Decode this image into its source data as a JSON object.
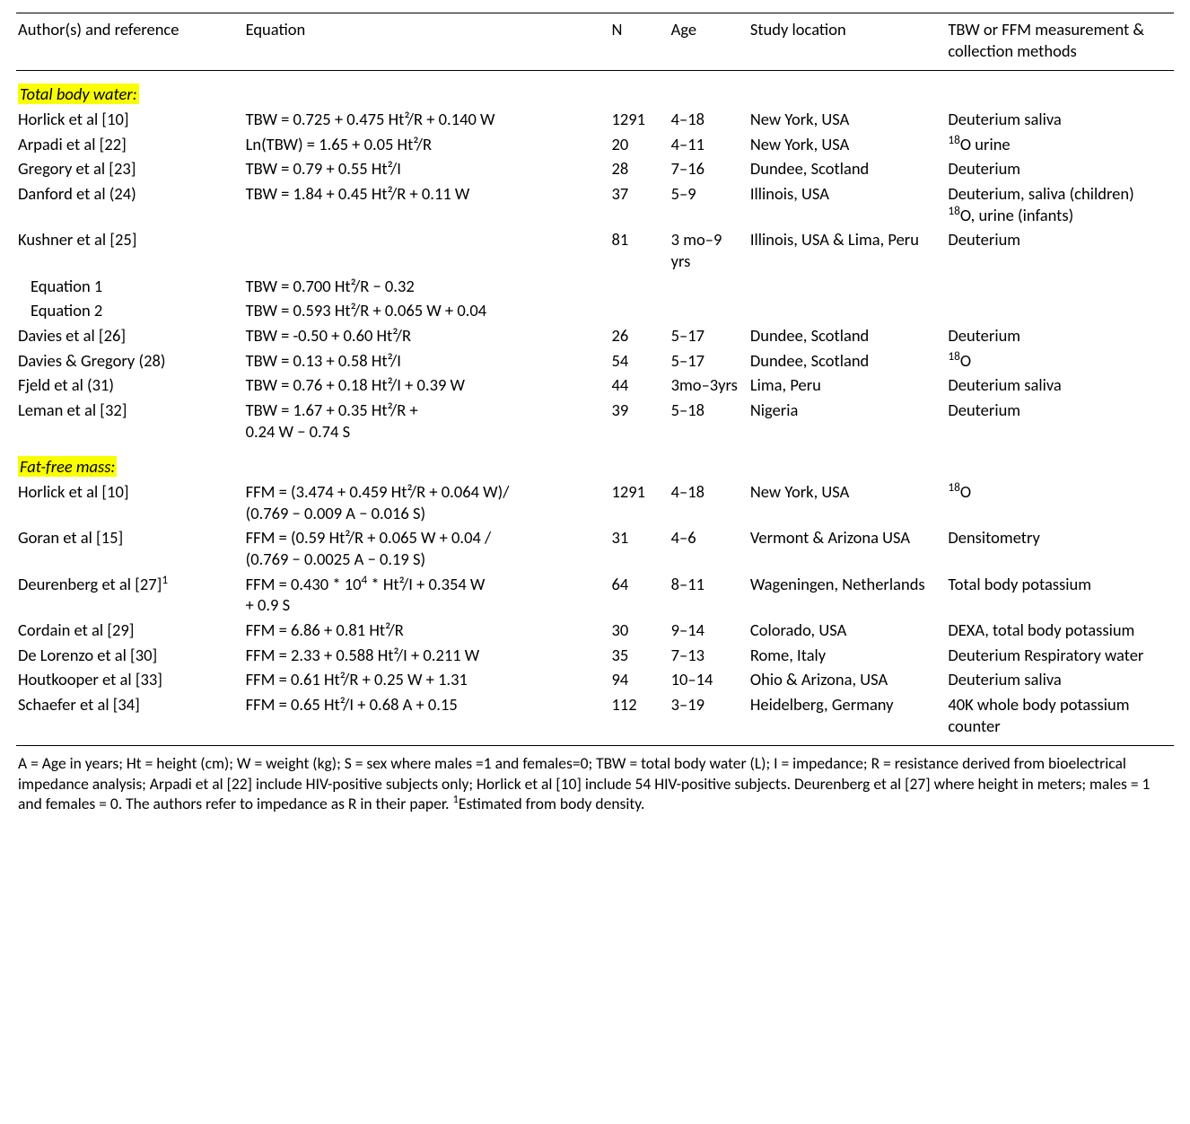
{
  "table": {
    "columns": {
      "author": "Author(s) and reference",
      "equation": "Equation",
      "n": "N",
      "age": "Age",
      "location": "Study location",
      "method": "TBW or FFM measurement & collection methods"
    },
    "sections": [
      {
        "heading": "Total body water:",
        "rows": [
          {
            "author": "Horlick et al [10]",
            "equation": "TBW = 0.725 + 0.475 Ht²/R + 0.140 W",
            "n": "1291",
            "age": "4–18",
            "location": "New York, USA",
            "method": "Deuterium saliva"
          },
          {
            "author": "Arpadi et al [22]",
            "equation": "Ln(TBW) = 1.65 + 0.05 Ht²/R",
            "n": "20",
            "age": "4–11",
            "location": "New York, USA",
            "method_html": "<sup>18</sup>O urine"
          },
          {
            "author": "Gregory et al [23]",
            "equation": "TBW = 0.79 + 0.55 Ht²/I",
            "n": "28",
            "age": "7–16",
            "location": "Dundee, Scotland",
            "method": "Deuterium"
          },
          {
            "author": "Danford et al (24)",
            "equation": "TBW = 1.84 + 0.45 Ht²/R + 0.11 W",
            "n": "37",
            "age": "5–9",
            "location": "Illinois, USA",
            "method_html": "Deuterium, saliva (children)<br><sup>18</sup>O, urine (infants)"
          },
          {
            "author": "Kushner et al [25]",
            "equation": "",
            "n": "81",
            "age": "3 mo–9 yrs",
            "location": "Illinois, USA & Lima, Peru",
            "method": "Deuterium"
          },
          {
            "author_html": "<span class=\"indent\">Equation 1</span>",
            "equation": "TBW = 0.700 Ht²/R − 0.32",
            "n": "",
            "age": "",
            "location": "",
            "method": ""
          },
          {
            "author_html": "<span class=\"indent\">Equation 2</span>",
            "equation": "TBW = 0.593 Ht²/R + 0.065 W + 0.04",
            "n": "",
            "age": "",
            "location": "",
            "method": ""
          },
          {
            "author": "Davies et al [26]",
            "equation": "TBW = -0.50 + 0.60 Ht²/R",
            "n": "26",
            "age": "5–17",
            "location": "Dundee, Scotland",
            "method": "Deuterium"
          },
          {
            "author": "Davies & Gregory (28)",
            "equation": "TBW = 0.13 + 0.58 Ht²/I",
            "n": "54",
            "age": "5–17",
            "location": "Dundee, Scotland",
            "method_html": "<sup>18</sup>O"
          },
          {
            "author": "Fjeld et al (31)",
            "equation": "TBW = 0.76 + 0.18 Ht²/I + 0.39 W",
            "n": "44",
            "age": "3mo–3yrs",
            "location": "Lima, Peru",
            "method": "Deuterium saliva"
          },
          {
            "author": "Leman et al [32]",
            "equation_html": "TBW = 1.67 + 0.35 Ht²/R +<br>0.24 W − 0.74 S",
            "n": "39",
            "age": "5–18",
            "location": "Nigeria",
            "method": "Deuterium"
          }
        ]
      },
      {
        "heading": "Fat-free mass:",
        "rows": [
          {
            "author": "Horlick et al [10]",
            "equation_html": "FFM = (3.474 + 0.459 Ht²/R + 0.064 W)/<br>(0.769 − 0.009 A − 0.016 S)",
            "n": "1291",
            "age": "4–18",
            "location": "New York, USA",
            "method_html": "<sup>18</sup>O"
          },
          {
            "author": "Goran et al [15]",
            "equation_html": "FFM = (0.59 Ht²/R + 0.065 W + 0.04 /<br>(0.769 − 0.0025 A − 0.19 S)",
            "n": "31",
            "age": "4–6",
            "location": "Vermont & Arizona USA",
            "method": "Densitometry"
          },
          {
            "author_html": "Deurenberg et al [27]<sup>1</sup>",
            "equation_html": "FFM = 0.430 * 10<sup>4</sup> * Ht²/I + 0.354 W<br>+ 0.9 S",
            "n": "64",
            "age": "8–11",
            "location": "Wageningen, Netherlands",
            "method": "Total body potassium"
          },
          {
            "author": "Cordain et al [29]",
            "equation": "FFM = 6.86 + 0.81 Ht²/R",
            "n": "30",
            "age": "9–14",
            "location": "Colorado, USA",
            "method": "DEXA, total body potassium"
          },
          {
            "author": "De Lorenzo et al [30]",
            "equation": "FFM = 2.33 + 0.588 Ht²/I + 0.211 W",
            "n": "35",
            "age": "7–13",
            "location": "Rome, Italy",
            "method": "Deuterium Respiratory water"
          },
          {
            "author": "Houtkooper et al [33]",
            "equation": "FFM = 0.61 Ht²/R + 0.25 W + 1.31",
            "n": "94",
            "age": "10–14",
            "location": "Ohio & Arizona, USA",
            "method": "Deuterium saliva"
          },
          {
            "author": "Schaefer et al [34]",
            "equation": "FFM = 0.65 Ht²/I + 0.68 A + 0.15",
            "n": "112",
            "age": "3–19",
            "location": "Heidelberg,  Germany",
            "method": "40K whole body potassium counter"
          }
        ]
      }
    ],
    "footnote_html": "A = Age in years; Ht = height (cm); W = weight (kg); S = sex where males =1 and females=0; TBW = total body water (L); I = impedance; R = resistance derived from bioelectrical impedance analysis; Arpadi et al [22] include HIV-positive subjects only; Horlick et al [10] include 54 HIV-positive subjects. Deurenberg et al [27] where height in meters; males = 1 and females = 0. The authors refer to impedance as R in their paper. <sup>1</sup>Estimated from body density."
  },
  "style": {
    "highlight_color": "#faff00",
    "rule_color": "#000000",
    "background_color": "#ffffff",
    "font_family": "Optima / Candara-like humanist sans",
    "body_fontsize_pt": 14,
    "footnote_fontsize_pt": 13
  }
}
